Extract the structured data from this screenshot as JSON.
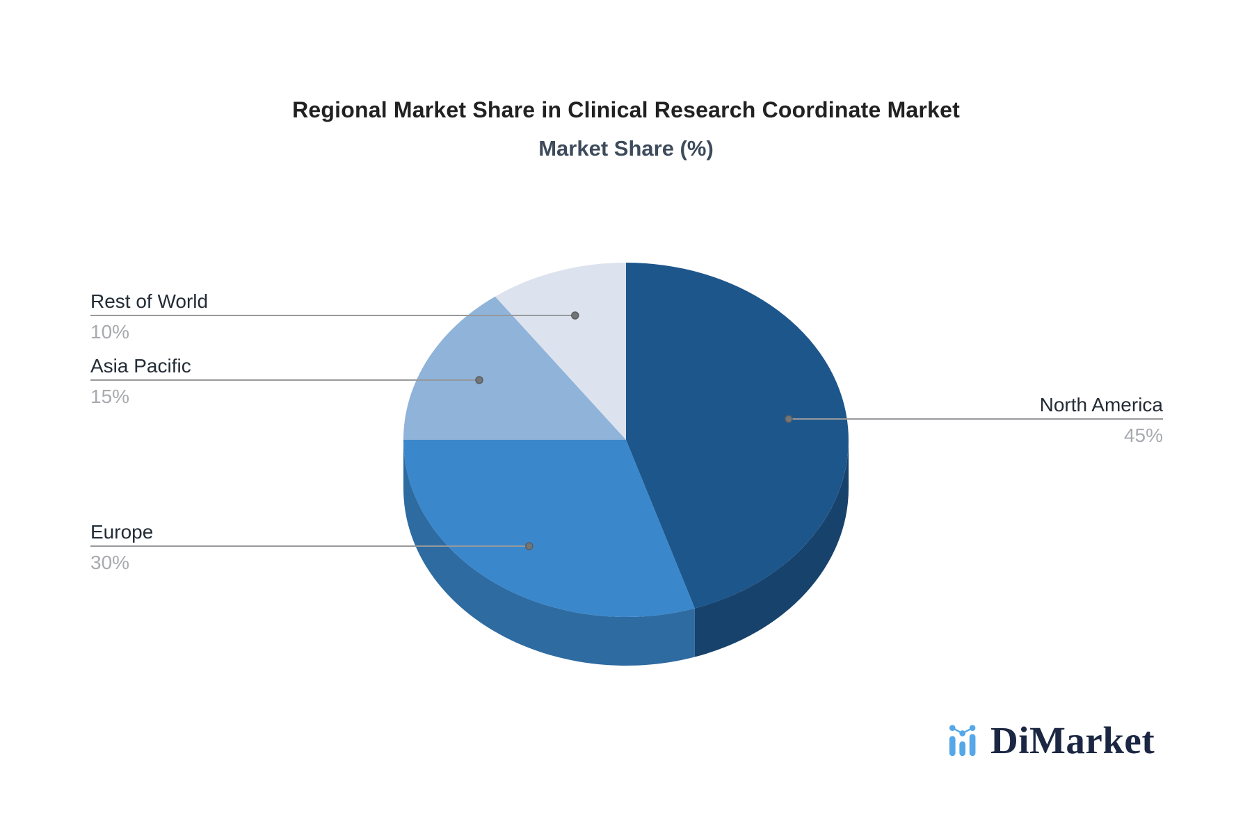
{
  "title": "Regional Market Share in Clinical Research Coordinate Market",
  "subtitle": "Market Share (%)",
  "chart_data": {
    "type": "pie",
    "style": "3d-pie",
    "title": "Regional Market Share in Clinical Research Coordinate Market",
    "subtitle": "Market Share (%)",
    "unit": "%",
    "start_angle_deg": 0,
    "direction": "clockwise",
    "categories": [
      "North America",
      "Europe",
      "Asia Pacific",
      "Rest of World"
    ],
    "values": [
      45,
      30,
      15,
      10
    ],
    "slices": [
      {
        "label": "North America",
        "value": 45,
        "display": "45%",
        "color": "#1d568b",
        "rim_color": "#17426c",
        "label_side": "right"
      },
      {
        "label": "Europe",
        "value": 30,
        "display": "30%",
        "color": "#3a87cb",
        "rim_color": "#2e6ba1",
        "label_side": "left"
      },
      {
        "label": "Asia Pacific",
        "value": 15,
        "display": "15%",
        "color": "#8fb3d9",
        "rim_color": "#7396bd",
        "label_side": "left"
      },
      {
        "label": "Rest of World",
        "value": 10,
        "display": "10%",
        "color": "#dde3ee",
        "rim_color": "#b9c4d6",
        "label_side": "left"
      }
    ],
    "legend": "none",
    "labels_layout": "leader-lines-with-dots"
  },
  "colors": {
    "background": "#ffffff",
    "title_text": "#212121",
    "subtitle_text": "#3d4b5c",
    "label_name_text": "#232c36",
    "label_value_text": "#a8aaaf",
    "leader_line": "#97999c",
    "leader_dot": "#737679",
    "leader_dot_stroke": "#5a5d60"
  },
  "branding": {
    "name": "DiMarket",
    "icon": "bar-line-chart-icon",
    "icon_color": "#55a7e8",
    "text_color": "#1b2742"
  }
}
